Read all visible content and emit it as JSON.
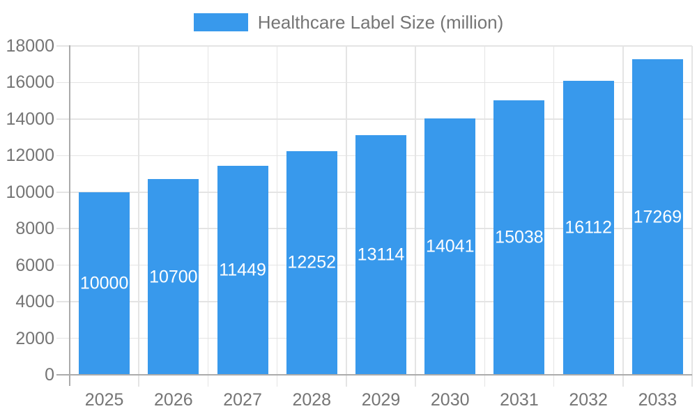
{
  "legend": {
    "label": "Healthcare Label Size (million)",
    "swatch_color": "#3899EC"
  },
  "chart_data": {
    "type": "bar",
    "title": "Healthcare Label Size (million)",
    "series_name": "Healthcare Label Size (million)",
    "categories": [
      "2025",
      "2026",
      "2027",
      "2028",
      "2029",
      "2030",
      "2031",
      "2032",
      "2033"
    ],
    "values": [
      10000,
      10700,
      11449,
      12252,
      13114,
      14041,
      15038,
      16112,
      17269
    ],
    "bar_labels": [
      "10000",
      "10700",
      "11449",
      "12252",
      "13114",
      "14041",
      "15038",
      "16112",
      "17269"
    ],
    "xlabel": "",
    "ylabel": "",
    "ylim": [
      0,
      18000
    ],
    "ytick_step": 2000,
    "yticks": [
      0,
      2000,
      4000,
      6000,
      8000,
      10000,
      12000,
      14000,
      16000,
      18000
    ],
    "grid": true,
    "legend_position": "top",
    "colors": {
      "bar": "#3899EC",
      "grid": "#E4E4E4",
      "axis": "#ABABAB",
      "tick_text": "#757575",
      "bar_label_text": "#FFFFFF",
      "background": "#FFFFFF"
    }
  }
}
